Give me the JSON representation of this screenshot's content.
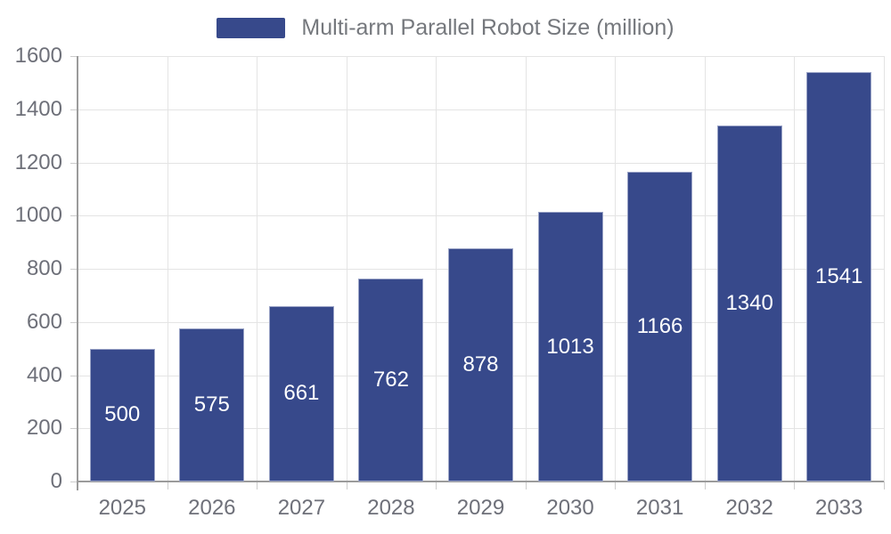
{
  "legend": {
    "label": "Multi-arm Parallel Robot Size (million)"
  },
  "chart_data": {
    "type": "bar",
    "title": "Multi-arm Parallel Robot Size (million)",
    "series_name": "Multi-arm Parallel Robot Size (million)",
    "categories": [
      "2025",
      "2026",
      "2027",
      "2028",
      "2029",
      "2030",
      "2031",
      "2032",
      "2033"
    ],
    "values": [
      500,
      575,
      661,
      762,
      878,
      1013,
      1166,
      1340,
      1541
    ],
    "xlabel": "",
    "ylabel": "",
    "ylim": [
      0,
      1600
    ],
    "ytick_step": 200,
    "yticks": [
      0,
      200,
      400,
      600,
      800,
      1000,
      1200,
      1400,
      1600
    ],
    "grid": true,
    "legend_position": "top-center",
    "value_labels": "inside-center",
    "bar_color": "#37498B",
    "bar_border_color": "#9AA3C6",
    "value_label_color": "#FFFFFF",
    "axis_label_color": "#6E7079",
    "legend_text_color": "#75787D",
    "grid_color": "#E4E4E4",
    "axis_line_color": "#9B9B9B",
    "tick_color": "#CCCCCC"
  }
}
